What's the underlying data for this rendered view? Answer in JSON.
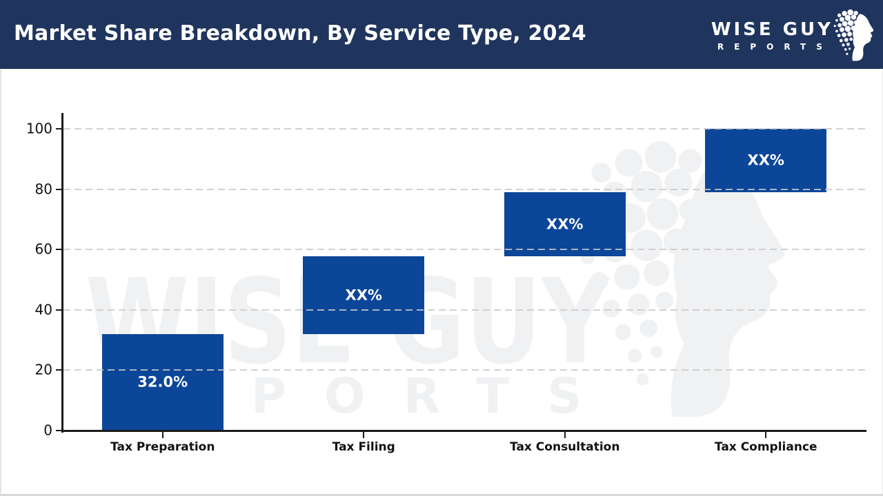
{
  "header": {
    "title": "Market Share Breakdown, By Service Type, 2024",
    "logo": {
      "name": "WISE GUY",
      "subtext": "REPORTS"
    }
  },
  "watermark": {
    "line1": "WISE GUY",
    "line2": "REPORTS"
  },
  "chart_data": {
    "type": "bar",
    "subtype": "waterfall-floating-segments",
    "title": "Market Share Breakdown, By Service Type, 2024",
    "categories": [
      "Tax Preparation",
      "Tax Filing",
      "Tax Consultation",
      "Tax Compliance"
    ],
    "segments": [
      {
        "category": "Tax Preparation",
        "start": 0,
        "end": 32,
        "label": "32.0%"
      },
      {
        "category": "Tax Filing",
        "start": 32,
        "end": 57.7,
        "label": "XX%"
      },
      {
        "category": "Tax Consultation",
        "start": 57.7,
        "end": 79,
        "label": "XX%"
      },
      {
        "category": "Tax Compliance",
        "start": 79,
        "end": 100,
        "label": "XX%"
      }
    ],
    "values_displayed": [
      "32.0%",
      "XX%",
      "XX%",
      "XX%"
    ],
    "xlabel": "",
    "ylabel": "",
    "yticks": [
      0,
      20,
      40,
      60,
      80,
      100
    ],
    "ylim": [
      0,
      105
    ],
    "grid": "horizontal-dashed",
    "legend": "none"
  },
  "colors": {
    "header_bg": "#1f355e",
    "bar": "#0b4699",
    "bar_label": "#ffffff",
    "grid": "#c9c9c9",
    "axis": "#1a1a1a",
    "watermark": "#f0f1f3",
    "bottom_border": "#d8d8d8"
  },
  "icons": {
    "logo_icon": "wiseguy-face-dots-icon"
  }
}
